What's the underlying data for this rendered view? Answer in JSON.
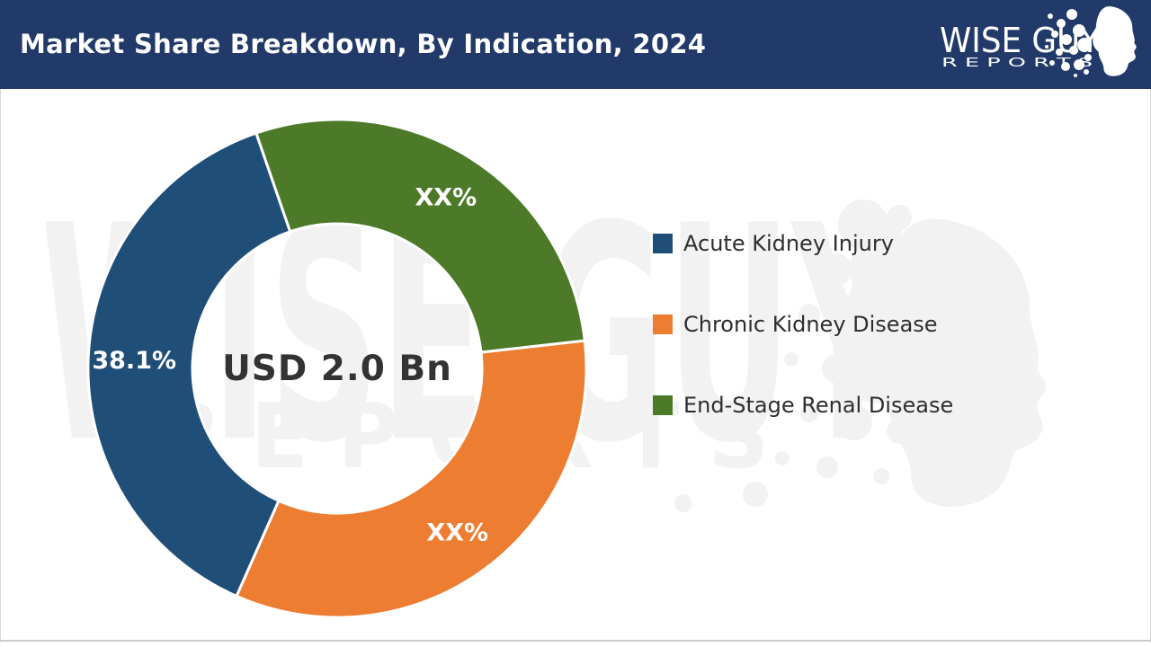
{
  "header": {
    "title": "Market Share Breakdown, By Indication, 2024"
  },
  "logo": {
    "name": "WISE GUY",
    "sub": "R E P O R T S"
  },
  "watermark": {
    "line1": "WISE GUY",
    "line2": "R E P O R T S"
  },
  "chart_data": {
    "type": "pie",
    "subtype": "donut",
    "title": "Market Share Breakdown, By Indication, 2024",
    "center_label": "USD 2.0 Bn",
    "legend_position": "right",
    "start_angle_deg": 109,
    "direction": "clockwise",
    "segments": [
      {
        "name": "Acute Kidney Injury",
        "value": 38.1,
        "display_label": "38.1%",
        "color": "#1f4e79"
      },
      {
        "name": "Chronic Kidney Disease",
        "value": 33.4,
        "display_label": "XX%",
        "color": "#ed7d31"
      },
      {
        "name": "End-Stage Renal Disease",
        "value": 28.5,
        "display_label": "XX%",
        "color": "#4c7a28"
      }
    ]
  },
  "colors": {
    "header_bg": "#213a69",
    "watermark": "#f2f2f3",
    "segment_gap": "#ffffff",
    "center_text": "#333333",
    "legend_text": "#2e2e2e"
  }
}
